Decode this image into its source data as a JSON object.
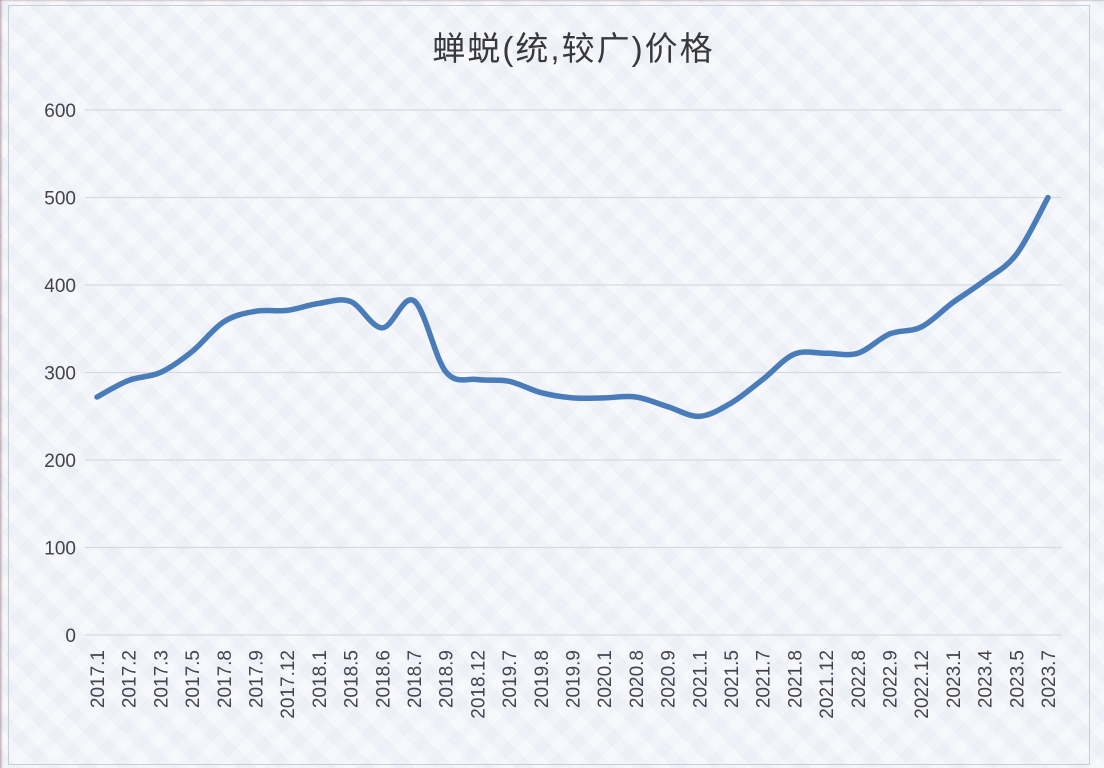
{
  "colors": {
    "line": "#4a7cba",
    "grid": "#d7d9e0",
    "axis_text": "#45424e",
    "title_text": "#39383d",
    "background": "#f2f4f9",
    "frame_border": "#c9cdd6"
  },
  "chart_data": {
    "type": "line",
    "title": "蝉蜕(统,较广)价格",
    "categories": [
      "2017.1",
      "2017.2",
      "2017.3",
      "2017.5",
      "2017.8",
      "2017.9",
      "2017.12",
      "2018.1",
      "2018.5",
      "2018.6",
      "2018.7",
      "2018.9",
      "2018.12",
      "2019.7",
      "2019.8",
      "2019.9",
      "2020.1",
      "2020.8",
      "2020.9",
      "2021.1",
      "2021.5",
      "2021.7",
      "2021.8",
      "2021.12",
      "2022.8",
      "2022.9",
      "2022.12",
      "2023.1",
      "2023.4",
      "2023.5",
      "2023.7"
    ],
    "values": [
      272,
      291,
      300,
      324,
      358,
      370,
      371,
      379,
      381,
      351,
      382,
      301,
      292,
      290,
      277,
      271,
      271,
      272,
      261,
      250,
      265,
      292,
      321,
      322,
      322,
      344,
      352,
      380,
      405,
      435,
      500
    ],
    "xlabel": "",
    "ylabel": "",
    "ylim": [
      0,
      600
    ],
    "yticks": [
      0,
      100,
      200,
      300,
      400,
      500,
      600
    ],
    "grid": true,
    "legend_position": "none",
    "line_smooth": true
  }
}
